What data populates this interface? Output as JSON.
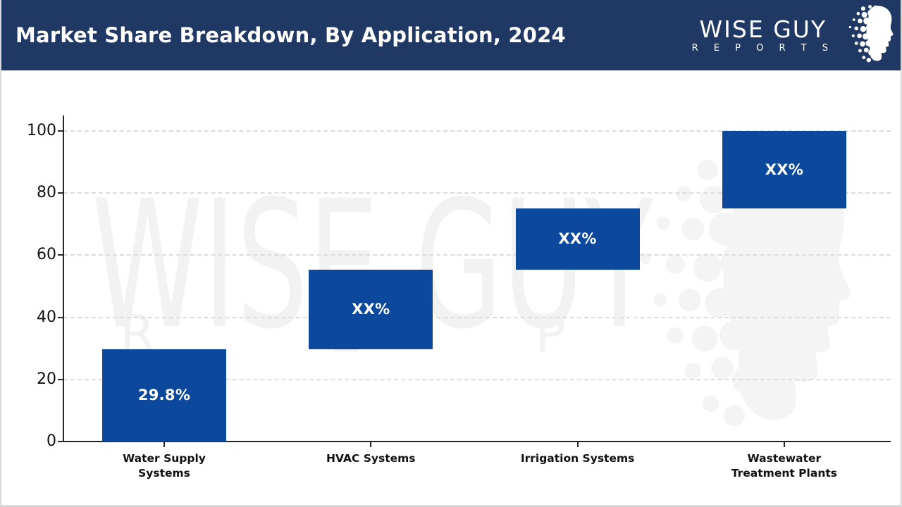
{
  "header": {
    "title": "Market Share Breakdown, By Application, 2024",
    "bg_color": "#1f3864",
    "logo": {
      "line1": "WISE GUY",
      "line2": "R E P O R T S"
    }
  },
  "watermark": {
    "line1": "WISE GUY",
    "line2": "R E P O R T S"
  },
  "chart_data": {
    "type": "bar",
    "subtype": "waterfall",
    "title": "Market Share Breakdown, By Application, 2024",
    "xlabel": "",
    "ylabel": "",
    "ylim": [
      0,
      100
    ],
    "yticks": [
      0,
      20,
      40,
      60,
      80,
      100
    ],
    "grid": "horizontal-dashed",
    "legend": "none",
    "bar_color": "#0c489c",
    "categories": [
      "Water Supply\nSystems",
      "HVAC Systems",
      "Irrigation Systems",
      "Wastewater\nTreatment Plants"
    ],
    "segments": [
      {
        "label": "29.8%",
        "start": 0,
        "end": 29.8,
        "value": 29.8
      },
      {
        "label": "XX%",
        "start": 29.8,
        "end": 55.3,
        "value": 25.5
      },
      {
        "label": "XX%",
        "start": 55.3,
        "end": 75.1,
        "value": 19.8
      },
      {
        "label": "XX%",
        "start": 75.1,
        "end": 100,
        "value": 24.9
      }
    ]
  }
}
